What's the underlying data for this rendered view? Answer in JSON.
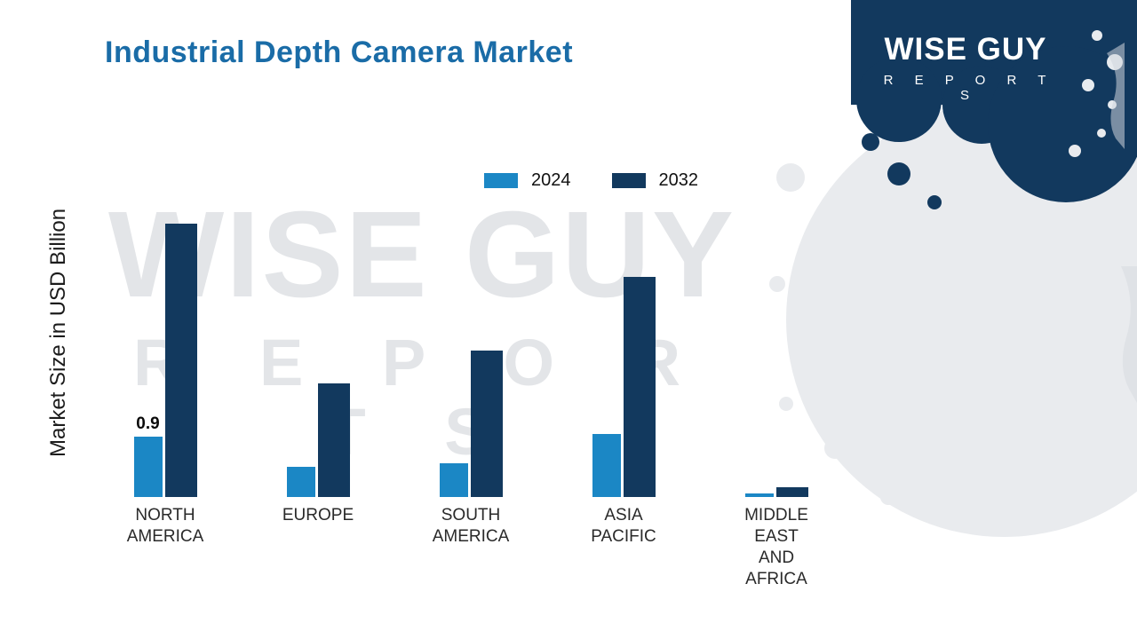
{
  "page": {
    "title": "Industrial Depth Camera Market",
    "y_axis_label": "Market Size in USD Billion"
  },
  "brand": {
    "logo_line1": "WISE GUY",
    "logo_line2": "R E P O R T S",
    "watermark_line1": "WISE GUY",
    "watermark_line2": "R E P O R T S"
  },
  "colors": {
    "title_blue": "#1a6ca7",
    "bar_2024": "#1b87c5",
    "bar_2032": "#12395e",
    "logo_navy": "#12395e",
    "watermark_gray": "#e3e5e8",
    "silhouette_gray": "#e9ebee"
  },
  "chart_data": {
    "type": "bar",
    "title": "Industrial Depth Camera Market",
    "xlabel": "",
    "ylabel": "Market Size in USD Billion",
    "categories": [
      "NORTH AMERICA",
      "EUROPE",
      "SOUTH AMERICA",
      "ASIA PACIFIC",
      "MIDDLE EAST AND AFRICA"
    ],
    "category_lines": [
      [
        "NORTH",
        "AMERICA"
      ],
      [
        "EUROPE"
      ],
      [
        "SOUTH",
        "AMERICA"
      ],
      [
        "ASIA",
        "PACIFIC"
      ],
      [
        "MIDDLE",
        "EAST",
        "AND",
        "AFRICA"
      ]
    ],
    "series": [
      {
        "name": "2024",
        "color": "#1b87c5",
        "values": [
          0.9,
          0.45,
          0.5,
          0.95,
          0.05
        ]
      },
      {
        "name": "2032",
        "color": "#12395e",
        "values": [
          4.1,
          1.7,
          2.2,
          3.3,
          0.15
        ]
      }
    ],
    "data_labels": [
      {
        "series": "2024",
        "category": "NORTH AMERICA",
        "text": "0.9"
      }
    ],
    "ylim": [
      0,
      4.4
    ],
    "grid": false,
    "legend_position": "top-center",
    "units": "USD Billion"
  }
}
